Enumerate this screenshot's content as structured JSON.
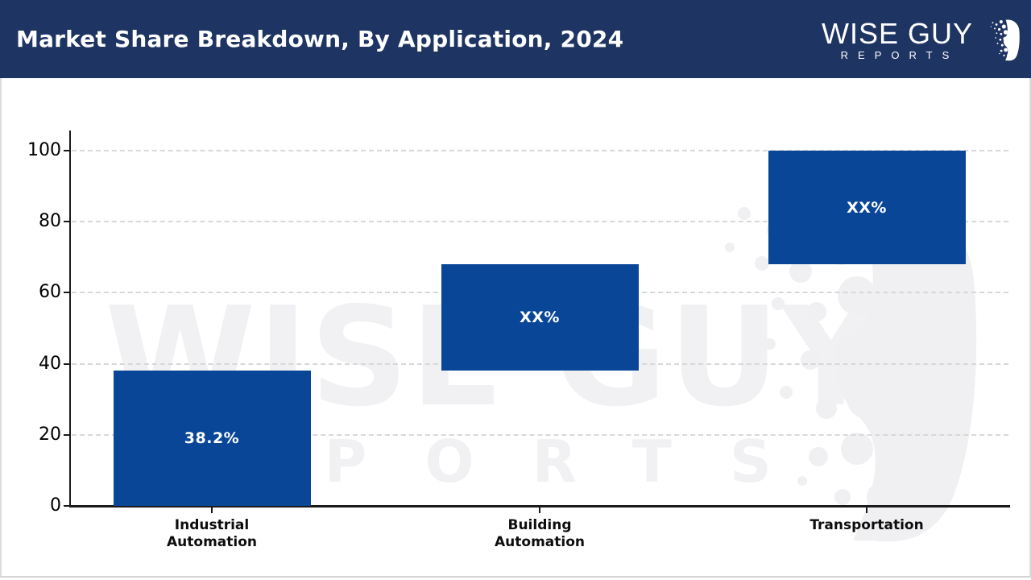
{
  "header": {
    "title": "Market Share Breakdown, By Application, 2024",
    "bg_color": "#1e3462",
    "logo": {
      "name": "WISE GUY",
      "subtitle": "REPORTS"
    }
  },
  "watermark": {
    "line1": "WISE GUY",
    "line2": "REPORTS"
  },
  "chart_data": {
    "type": "bar",
    "subtype": "waterfall",
    "title": "Market Share Breakdown, By Application, 2024",
    "xlabel": "",
    "ylabel": "",
    "ylim": [
      0,
      100
    ],
    "yticks": [
      0,
      20,
      40,
      60,
      80,
      100
    ],
    "grid": "horizontal dashed, on",
    "legend": "none",
    "bar_color": "#0a4697",
    "categories": [
      "Industrial\nAutomation",
      "Building\nAutomation",
      "Transportation"
    ],
    "segments": [
      {
        "category": "Industrial Automation",
        "start": 0,
        "end": 38.2,
        "label": "38.2%"
      },
      {
        "category": "Building Automation",
        "start": 38.2,
        "end": 68,
        "label": "XX%"
      },
      {
        "category": "Transportation",
        "start": 68,
        "end": 100,
        "label": "XX%"
      }
    ]
  }
}
